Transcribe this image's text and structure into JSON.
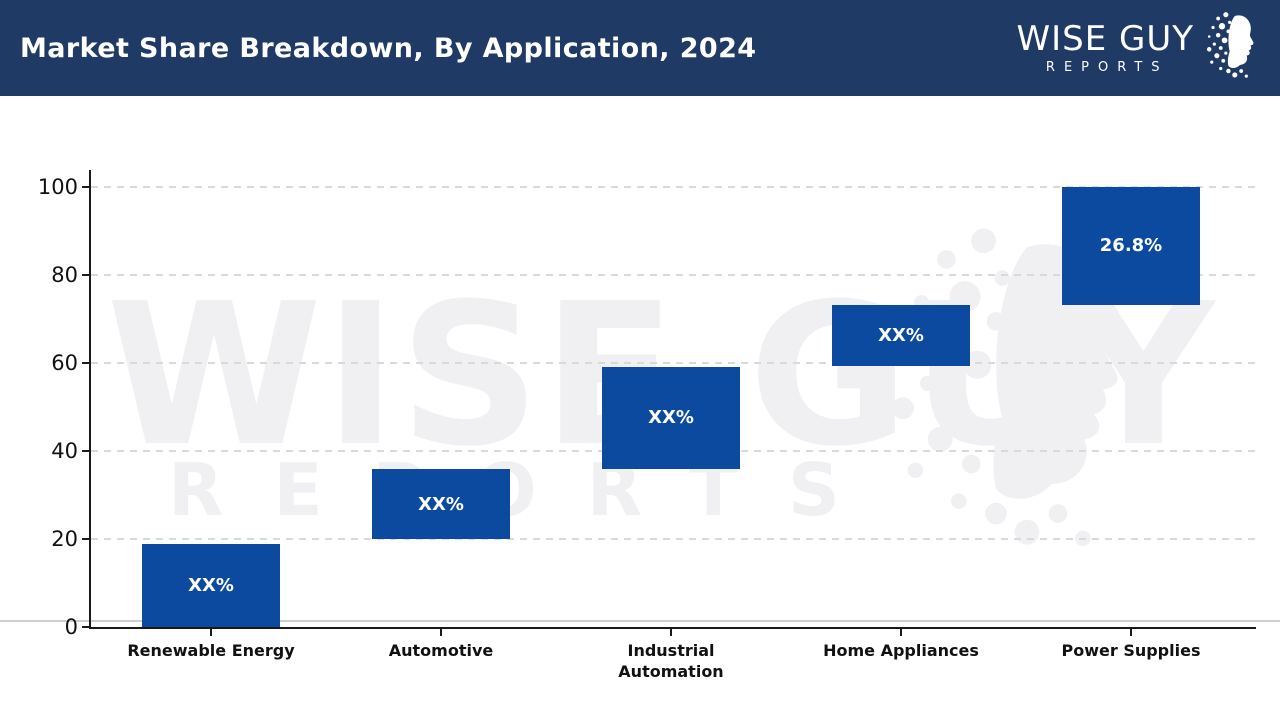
{
  "header": {
    "title": "Market Share Breakdown, By Application, 2024",
    "logo": {
      "line1": "WISE GUY",
      "line2": "REPORTS"
    }
  },
  "watermark": {
    "line1": "WISE GUY",
    "line2": "REPORTS"
  },
  "icons": {
    "logo_face": "dotted-head-profile-icon"
  },
  "colors": {
    "header_bg": "#203a66",
    "bar": "#0b4a9e",
    "bar_label": "#ffffff",
    "grid": "#d9d9d9",
    "axis": "#1a1a1a",
    "watermark": "#f0f0f3"
  },
  "chart_data": {
    "type": "bar",
    "subtype": "waterfall",
    "title": "Market Share Breakdown, By Application, 2024",
    "xlabel": "",
    "ylabel": "",
    "ylim": [
      0,
      100
    ],
    "y_ticks": [
      0,
      20,
      40,
      60,
      80,
      100
    ],
    "grid": "dashed-horizontal",
    "legend": "none",
    "categories": [
      "Renewable Energy",
      "Automotive",
      "Industrial Automation",
      "Home Appliances",
      "Power Supplies"
    ],
    "segments": [
      {
        "category": "Renewable Energy",
        "category_lines": [
          "Renewable Energy"
        ],
        "start": 0,
        "end": 18.9,
        "label": "XX%"
      },
      {
        "category": "Automotive",
        "category_lines": [
          "Automotive"
        ],
        "start": 20.1,
        "end": 35.8,
        "label": "XX%"
      },
      {
        "category": "Industrial Automation",
        "category_lines": [
          "Industrial",
          "Automation"
        ],
        "start": 36.0,
        "end": 59.2,
        "label": "XX%"
      },
      {
        "category": "Home Appliances",
        "category_lines": [
          "Home Appliances"
        ],
        "start": 59.4,
        "end": 73.2,
        "label": "XX%"
      },
      {
        "category": "Power Supplies",
        "category_lines": [
          "Power Supplies"
        ],
        "start": 73.2,
        "end": 100,
        "label": "26.8%"
      }
    ]
  }
}
